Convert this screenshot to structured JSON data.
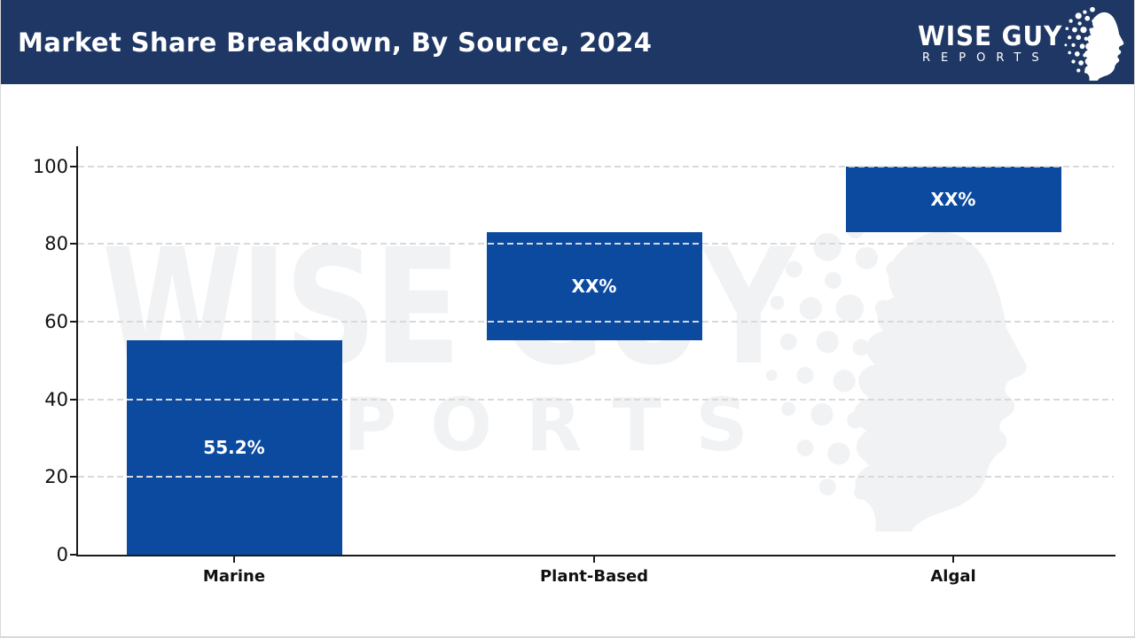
{
  "header": {
    "title": "Market Share Breakdown, By Source, 2024",
    "brand": {
      "wordmark": "WISE GUY",
      "sub": "REPORTS"
    }
  },
  "watermark": {
    "wordmark": "WISE GUY",
    "sub": "REPORTS"
  },
  "chart_data": {
    "type": "bar",
    "variant": "waterfall",
    "title": "Market Share Breakdown, By Source, 2024",
    "categories": [
      "Marine",
      "Plant-Based",
      "Algal"
    ],
    "segments": [
      {
        "category": "Marine",
        "start": 0,
        "end": 55.2,
        "label": "55.2%"
      },
      {
        "category": "Plant-Based",
        "start": 55.2,
        "end": 83,
        "label": "XX%"
      },
      {
        "category": "Algal",
        "start": 83,
        "end": 100,
        "label": "XX%"
      }
    ],
    "xlabel": "",
    "ylabel": "",
    "ylim": [
      0,
      100
    ],
    "yticks": [
      0,
      20,
      40,
      60,
      80,
      100
    ],
    "grid": {
      "axis": "y",
      "style": "dashed",
      "drawn_over_bars": true
    },
    "legend": null
  },
  "colors": {
    "header_navy": "#1f3765",
    "bar_blue": "#0c4aa0",
    "bar_label": "#ffffff",
    "grid": "#d9d9d9",
    "axis": "#1a1a1a",
    "watermark": "#f1f2f4",
    "page_border": "#d9d9d9"
  }
}
